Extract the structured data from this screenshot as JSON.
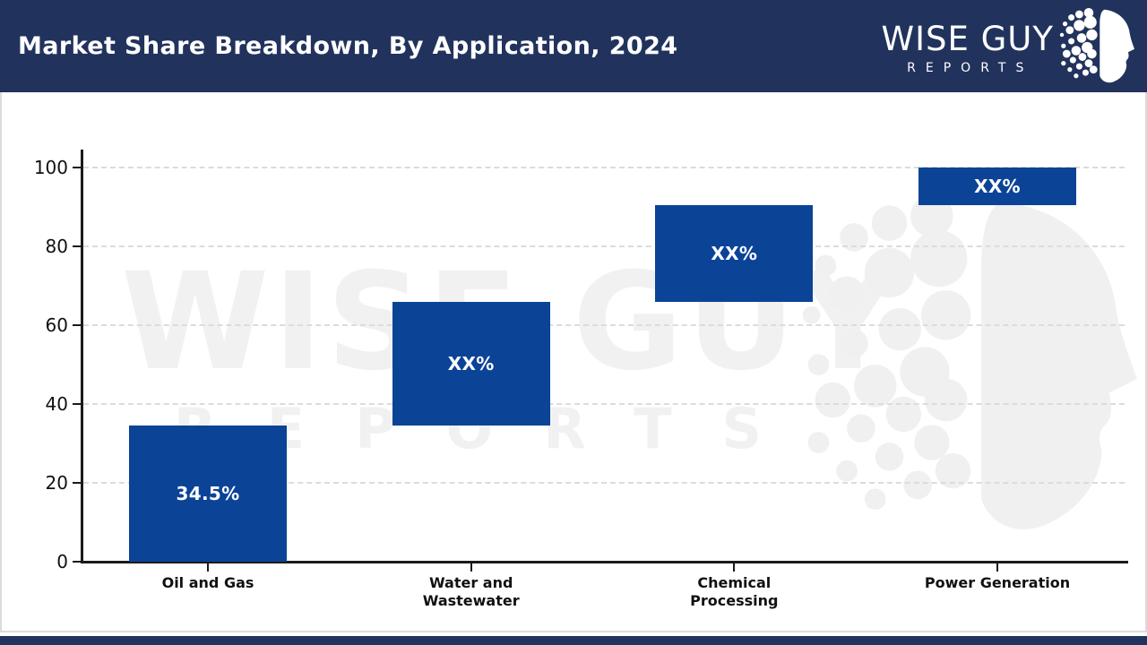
{
  "header": {
    "title": "Market Share Breakdown, By Application, 2024",
    "logo": {
      "line1": "WISE GUY",
      "line2": "REPORTS"
    }
  },
  "watermark": {
    "line1": "WISE GUY",
    "line2": "REPORTS"
  },
  "colors": {
    "header_bg": "#21335d",
    "footer_bg": "#21335d",
    "bar": "#0b4397",
    "bar_label": "#ffffff",
    "grid": "#dcdcdc",
    "axis": "#1a1a1a",
    "watermark": "#f1f1f1"
  },
  "chart_data": {
    "type": "bar",
    "subtype": "waterfall",
    "title": "Market Share Breakdown, By Application, 2024",
    "categories": [
      "Oil and Gas",
      "Water and\nWastewater",
      "Chemical\nProcessing",
      "Power Generation"
    ],
    "segments": [
      {
        "category": "Oil and Gas",
        "start": 0,
        "end": 34.5,
        "label": "34.5%"
      },
      {
        "category": "Water and Wastewater",
        "start": 34.5,
        "end": 66,
        "label": "XX%"
      },
      {
        "category": "Chemical Processing",
        "start": 66,
        "end": 90.5,
        "label": "XX%"
      },
      {
        "category": "Power Generation",
        "start": 90.5,
        "end": 100,
        "label": "XX%"
      }
    ],
    "xlabel": "",
    "ylabel": "",
    "ylim": [
      0,
      100
    ],
    "yticks": [
      0,
      20,
      40,
      60,
      80,
      100
    ],
    "grid": "horizontal-dashed",
    "legend": null
  }
}
